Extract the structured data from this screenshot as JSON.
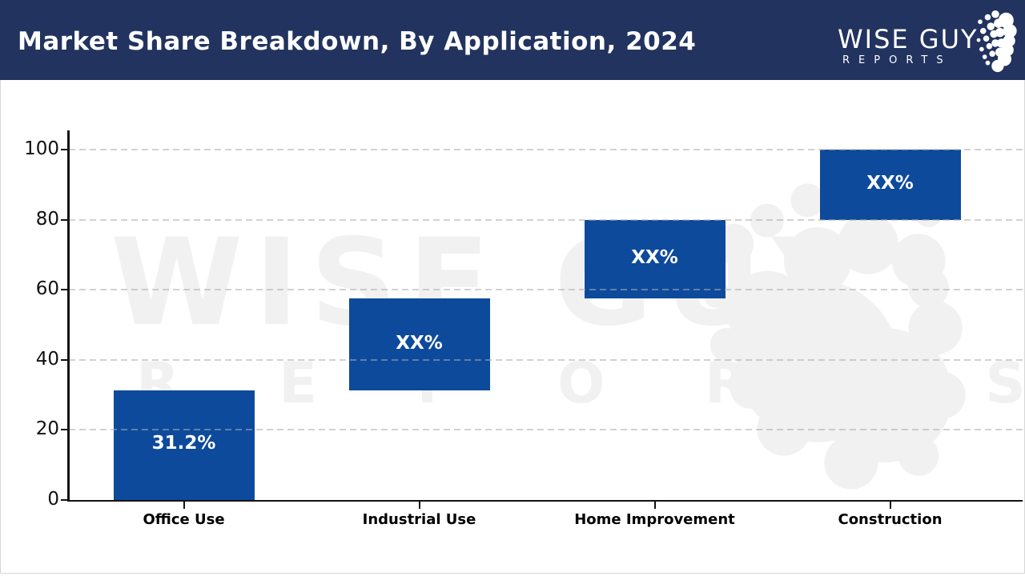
{
  "page": {
    "background": "#ffffff",
    "border_color": "#d6d6d6"
  },
  "header": {
    "background": "#22335f",
    "title": "Market Share Breakdown, By Application, 2024",
    "logo": {
      "wordmark": "WISE GUY",
      "sub": "REPORTS"
    }
  },
  "watermark": {
    "wordmark": "WISE GUY",
    "sub": "R E P O R T S"
  },
  "chart_data": {
    "type": "waterfall",
    "title": "Market Share Breakdown, By Application, 2024",
    "categories": [
      "Office Use",
      "Industrial Use",
      "Home Improvement",
      "Construction"
    ],
    "segments": [
      {
        "category": "Office Use",
        "start": 0,
        "end": 31.2,
        "label": "31.2%"
      },
      {
        "category": "Industrial Use",
        "start": 31.2,
        "end": 57.4,
        "label": "XX%"
      },
      {
        "category": "Home Improvement",
        "start": 57.4,
        "end": 80,
        "label": "XX%"
      },
      {
        "category": "Construction",
        "start": 80,
        "end": 100,
        "label": "XX%"
      }
    ],
    "y_ticks": [
      0,
      20,
      40,
      60,
      80,
      100
    ],
    "ylim": [
      0,
      105
    ],
    "xlabel": "",
    "ylabel": "",
    "bar_color": "#0d4a9c",
    "bar_label_color": "#ffffff",
    "grid": {
      "axis": "y",
      "style": "dashed",
      "color": "#c9c9c9",
      "drawn_over_bars": true
    },
    "legend": "none"
  }
}
